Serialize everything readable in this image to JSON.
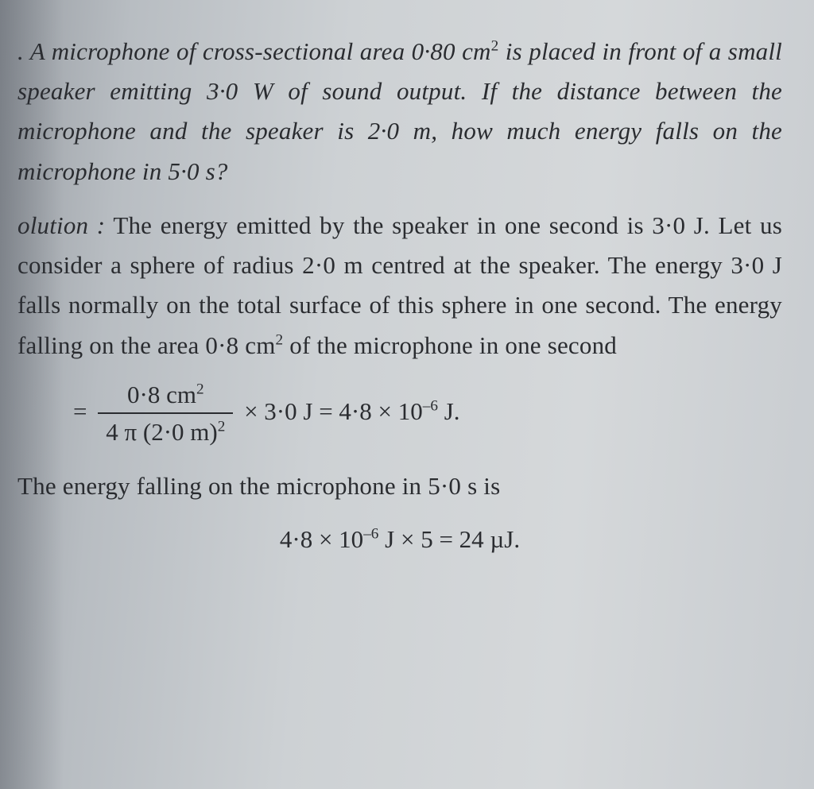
{
  "colors": {
    "text": "#2a2c30",
    "bg_left": "#9a9fa5",
    "bg_mid": "#cdd1d4",
    "rule": "#2a2c30"
  },
  "typography": {
    "body_fontsize_pt": 23,
    "family": "Georgia / serif",
    "style_problem": "italic",
    "style_solution": "roman"
  },
  "problem": {
    "lead": ". A microphone of cross-sectional area 0·80 cm",
    "lead_sup": "2",
    "lead2": " is placed in front of a small speaker emitting 3·0 W of sound output. If the distance between the microphone and the speaker is 2·0 m, how much energy falls on the microphone in 5·0 s?"
  },
  "solution": {
    "label": "olution :",
    "body_a": " The energy emitted by the speaker in one second is 3·0 J. Let us consider a sphere of radius 2·0 m centred at the speaker. The energy 3·0 J falls normally on the total surface of this sphere in one second. The energy falling on the area 0·8 cm",
    "body_a_sup": "2",
    "body_b": " of the microphone in one second"
  },
  "equation1": {
    "eq_sign": "=",
    "num_a": "0·8 cm",
    "num_sup": "2",
    "den_a": "4 π (2·0 m)",
    "den_sup": "2",
    "mid": " × 3·0 J = 4·8 × 10",
    "mid_sup": "–6",
    "tail": " J."
  },
  "line2": "The energy falling on the microphone in 5·0 s is",
  "equation2": {
    "a": "4·8 × 10",
    "a_sup": "–6",
    "b": " J × 5 = 24 µJ."
  }
}
